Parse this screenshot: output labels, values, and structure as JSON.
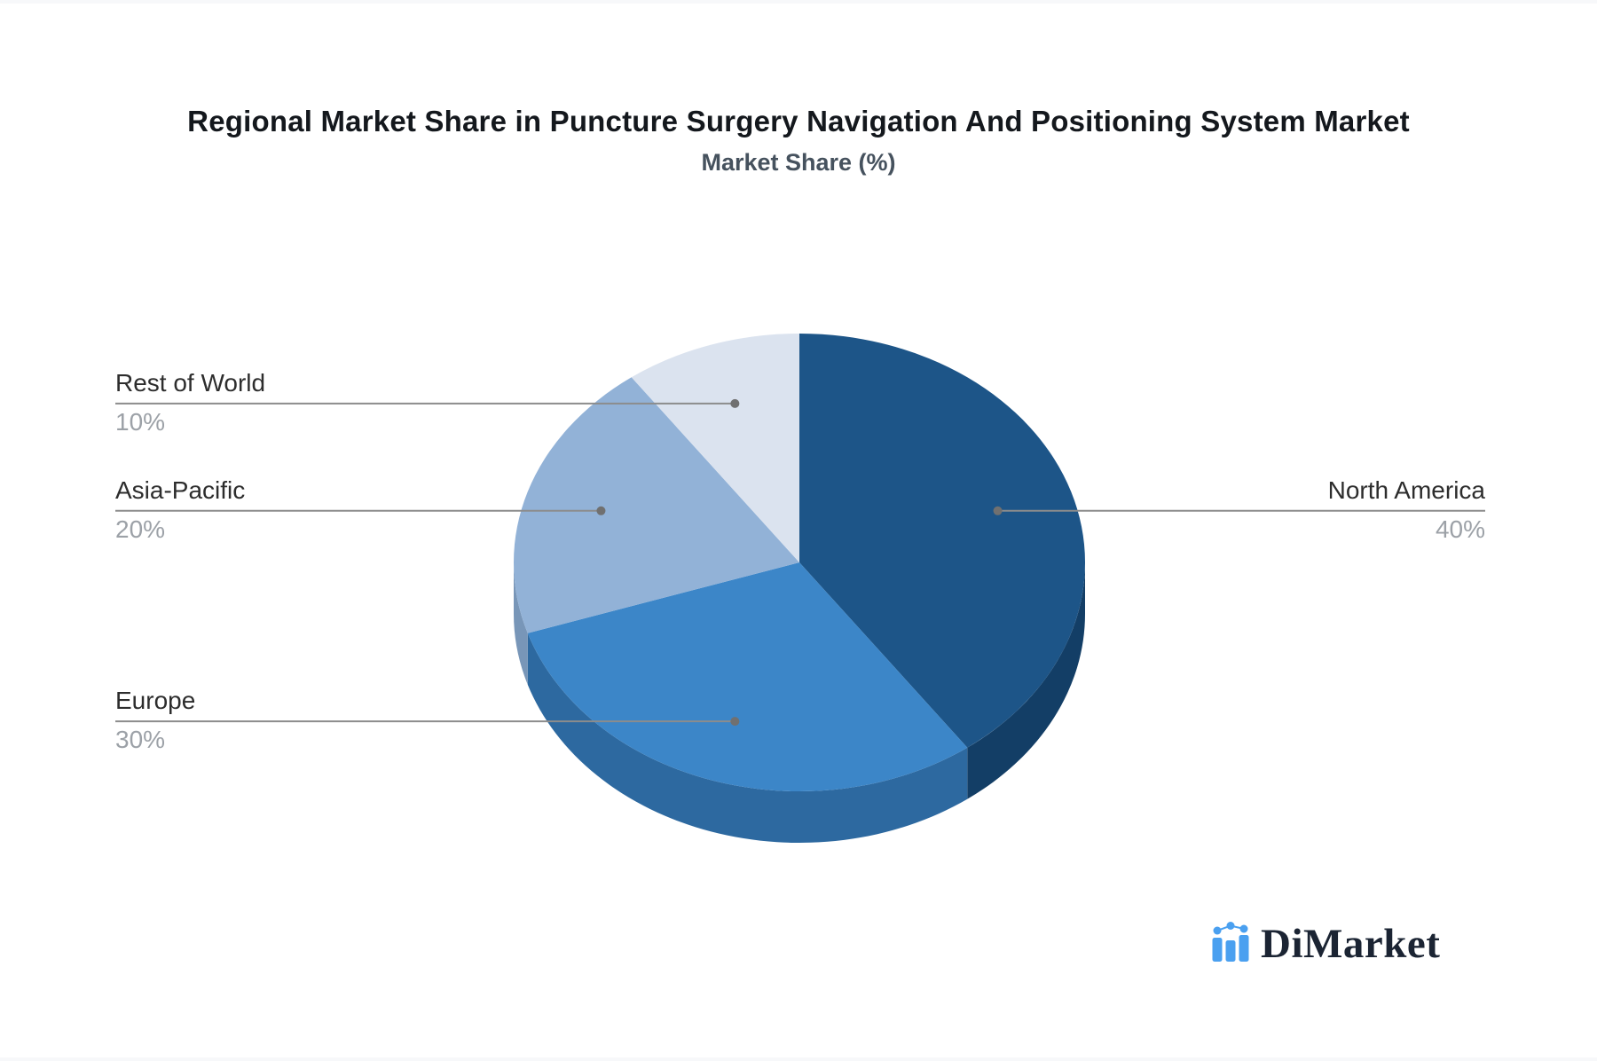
{
  "page": {
    "title": "Regional Market Share in Puncture Surgery Navigation And Positioning System Market",
    "subtitle": "Market Share (%)"
  },
  "chart_data": {
    "type": "pie",
    "style": "3d",
    "title": "Regional Market Share in Puncture Surgery Navigation And Positioning System Market",
    "subtitle": "Market Share (%)",
    "start_angle_deg": 0,
    "direction": "clockwise",
    "legend_position": "none",
    "label_style": "leader-line callouts, region name above line, percent below line",
    "series": [
      {
        "label": "North America",
        "value": 40,
        "display": "40%",
        "color": "#1d5588",
        "side_color": "#133e66",
        "label_side": "right"
      },
      {
        "label": "Europe",
        "value": 30,
        "display": "30%",
        "color": "#3c86c8",
        "side_color": "#2d69a0",
        "label_side": "left"
      },
      {
        "label": "Asia-Pacific",
        "value": 20,
        "display": "20%",
        "color": "#92b2d7",
        "side_color": "#7896b8",
        "label_side": "left"
      },
      {
        "label": "Rest of World",
        "value": 10,
        "display": "10%",
        "color": "#dbe3ef",
        "side_color": "#b8c4d8",
        "label_side": "left"
      }
    ]
  },
  "leader": {
    "line_color": "#8c8c8c",
    "dot_color": "#707070"
  },
  "brand": {
    "name": "DiMarket",
    "icon": "bar-chart-trend-icon",
    "icon_color": "#4aa0f0",
    "text_color": "#1b2433"
  }
}
